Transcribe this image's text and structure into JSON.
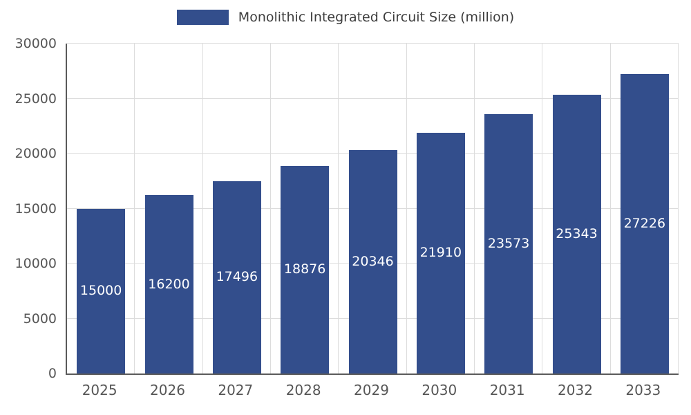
{
  "legend": {
    "label": "Monolithic Integrated Circuit Size (million)"
  },
  "colors": {
    "bar": "#334e8c",
    "grid": "#dcdcdc",
    "axis": "#5a5a5a",
    "tick_text": "#565656",
    "value_label": "#ffffff",
    "legend_text": "#3d3d3d",
    "background": "#ffffff"
  },
  "chart_data": {
    "type": "bar",
    "title": "Monolithic Integrated Circuit Size (million)",
    "series_name": "Monolithic Integrated Circuit Size (million)",
    "categories": [
      "2025",
      "2026",
      "2027",
      "2028",
      "2029",
      "2030",
      "2031",
      "2032",
      "2033"
    ],
    "values": [
      15000,
      16200,
      17496,
      18876,
      20346,
      21910,
      23573,
      25343,
      27226
    ],
    "xlabel": "",
    "ylabel": "",
    "ylim": [
      0,
      30000
    ],
    "y_ticks": [
      0,
      5000,
      10000,
      15000,
      20000,
      25000,
      30000
    ],
    "grid": true,
    "legend_position": "top",
    "value_label_position": "inside-center"
  }
}
